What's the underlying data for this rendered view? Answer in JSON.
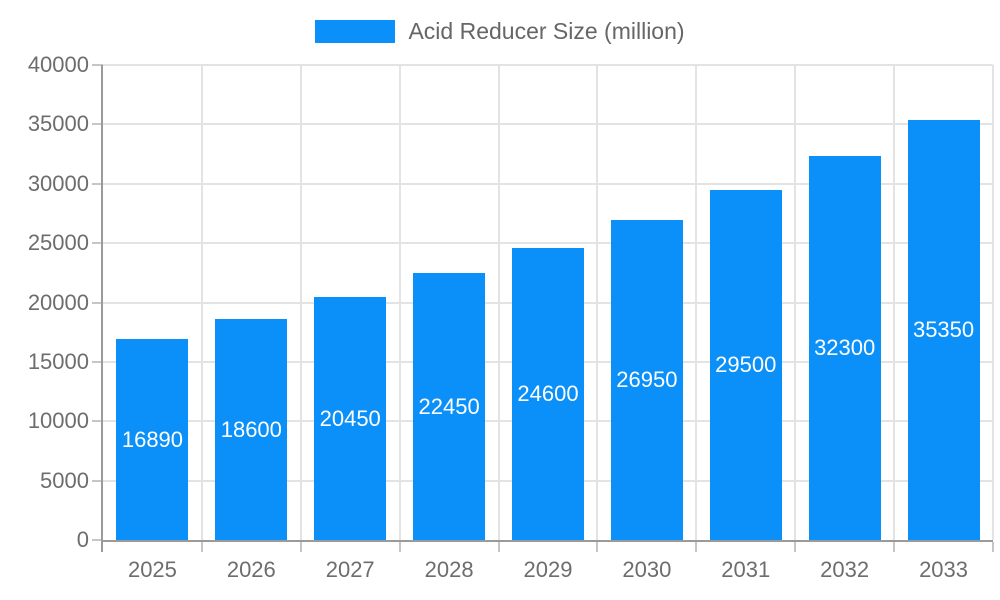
{
  "legend": {
    "label": "Acid Reducer Size (million)"
  },
  "colors": {
    "bar": "#0a90f8",
    "bar_label": "#ffffff",
    "axis": "#9a9a9a",
    "grid": "#e3e3e3",
    "tick": "#c6c6c6",
    "text": "#6d6d6d"
  },
  "chart_data": {
    "type": "bar",
    "title": "Acid Reducer Size (million)",
    "series_name": "Acid Reducer Size (million)",
    "categories": [
      "2025",
      "2026",
      "2027",
      "2028",
      "2029",
      "2030",
      "2031",
      "2032",
      "2033"
    ],
    "values": [
      16890,
      18600,
      20450,
      22450,
      24600,
      26950,
      29500,
      32300,
      35350
    ],
    "xlabel": "",
    "ylabel": "",
    "ylim": [
      0,
      40000
    ],
    "ytick_step": 5000,
    "yticks": [
      0,
      5000,
      10000,
      15000,
      20000,
      25000,
      30000,
      35000,
      40000
    ],
    "grid": true,
    "legend_position": "top",
    "bar_labels_inside": true
  }
}
